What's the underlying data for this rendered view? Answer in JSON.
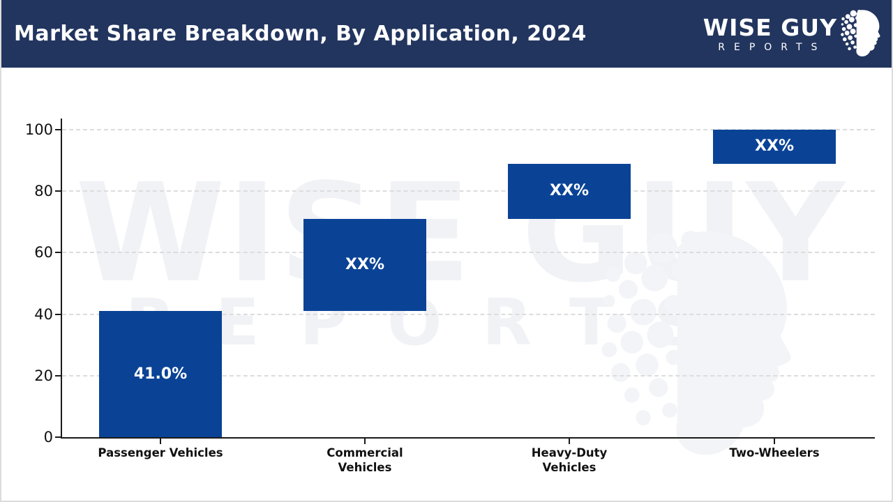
{
  "header": {
    "title": "Market Share Breakdown, By Application, 2024",
    "logo": {
      "brand_top": "WISE GUY",
      "brand_bottom": "REPORTS"
    }
  },
  "watermark": {
    "top": "WISE GUY",
    "bottom": "REPORTS"
  },
  "colors": {
    "header_bg": "#22355f",
    "bar": "#0a4396",
    "grid": "#dcdcdc",
    "axis": "#1a1a1a",
    "bar_label_text": "#ffffff",
    "watermark_text": "#f1f2f6"
  },
  "chart_data": {
    "type": "bar",
    "subtype": "waterfall",
    "title": "Market Share Breakdown, By Application, 2024",
    "xlabel": "",
    "ylabel": "",
    "categories": [
      {
        "lines": [
          "Passenger Vehicles"
        ]
      },
      {
        "lines": [
          "Commercial",
          "Vehicles"
        ]
      },
      {
        "lines": [
          "Heavy-Duty",
          "Vehicles"
        ]
      },
      {
        "lines": [
          "Two-Wheelers"
        ]
      }
    ],
    "segments": [
      {
        "category": "Passenger Vehicles",
        "start": 0,
        "end": 41,
        "value": 41,
        "label": "41.0%"
      },
      {
        "category": "Commercial Vehicles",
        "start": 41,
        "end": 71,
        "value": 30,
        "label": "XX%"
      },
      {
        "category": "Heavy-Duty Vehicles",
        "start": 71,
        "end": 89,
        "value": 18,
        "label": "XX%"
      },
      {
        "category": "Two-Wheelers",
        "start": 89,
        "end": 100,
        "value": 11,
        "label": "XX%"
      }
    ],
    "yticks": [
      0,
      20,
      40,
      60,
      80,
      100
    ],
    "ylim": [
      0,
      104
    ],
    "grid": "horizontal-dashed",
    "legend": "none"
  }
}
